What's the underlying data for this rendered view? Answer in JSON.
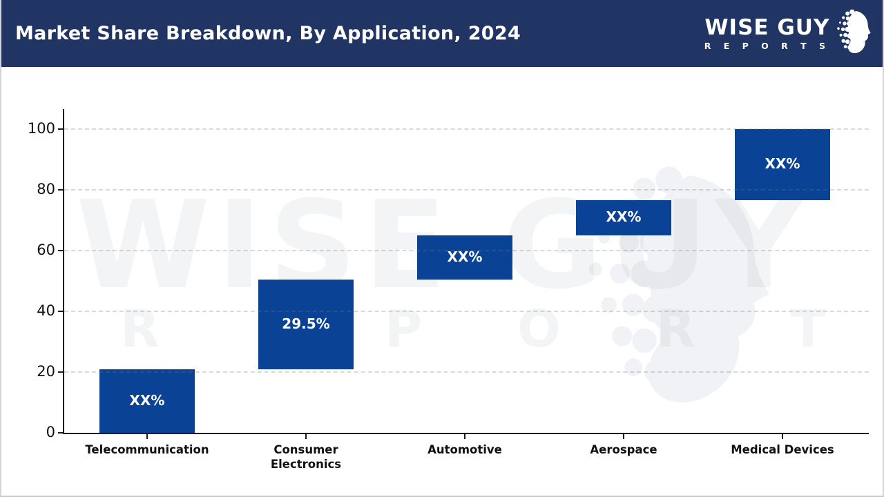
{
  "header": {
    "title": "Market Share Breakdown, By Application, 2024",
    "bg_color": "#213564",
    "logo": {
      "line1": "WISE GUY",
      "line2": "R E P O R T S"
    }
  },
  "watermark": {
    "line1": "WISE GUY",
    "line2": "R E P O R T S"
  },
  "chart_data": {
    "type": "bar",
    "subtype": "waterfall",
    "title": "Market Share Breakdown, By Application, 2024",
    "categories": [
      "Telecommunication",
      "Consumer Electronics",
      "Automotive",
      "Aerospace",
      "Medical Devices"
    ],
    "segments": [
      {
        "category": "Telecommunication",
        "start": 0,
        "end": 20.8,
        "label": "XX%"
      },
      {
        "category": "Consumer Electronics",
        "start": 20.8,
        "end": 50.3,
        "label": "29.5%"
      },
      {
        "category": "Automotive",
        "start": 50.3,
        "end": 65.0,
        "label": "XX%"
      },
      {
        "category": "Aerospace",
        "start": 65.0,
        "end": 76.6,
        "label": "XX%"
      },
      {
        "category": "Medical Devices",
        "start": 76.6,
        "end": 100,
        "label": "XX%"
      }
    ],
    "y_ticks": [
      0,
      20,
      40,
      60,
      80,
      100
    ],
    "ylim": [
      0,
      100
    ],
    "xlabel": "",
    "ylabel": "",
    "grid": true,
    "legend": "none",
    "bar_color": "#0a4296",
    "bar_label_color": "#ffffff",
    "axis_color": "#1a1a1a"
  }
}
